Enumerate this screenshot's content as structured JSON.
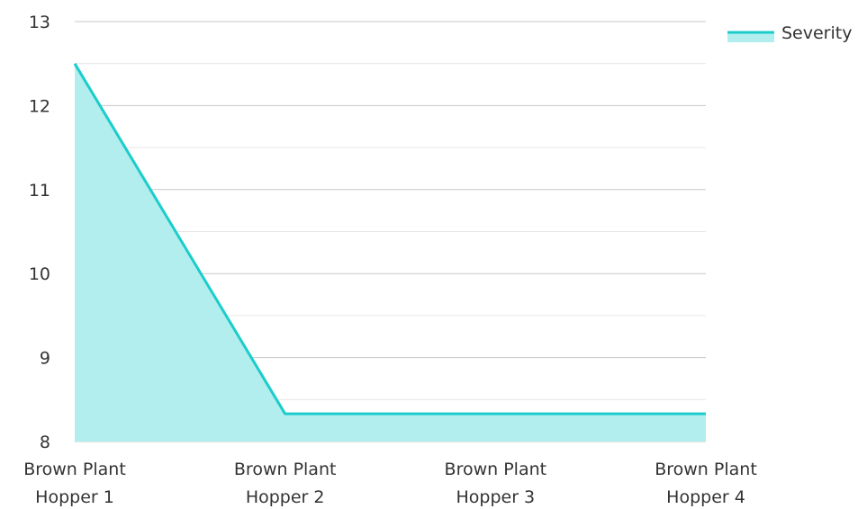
{
  "chart_data": {
    "type": "area",
    "categories": [
      [
        "Brown Plant",
        "Hopper 1"
      ],
      [
        "Brown Plant",
        "Hopper 2"
      ],
      [
        "Brown Plant",
        "Hopper 3"
      ],
      [
        "Brown Plant",
        "Hopper 4"
      ]
    ],
    "series": [
      {
        "name": "Severity",
        "values": [
          12.5,
          8.33,
          8.33,
          8.33
        ]
      }
    ],
    "ylim": [
      8,
      13
    ],
    "yticks": [
      8,
      9,
      10,
      11,
      12,
      13
    ],
    "grid": true,
    "minor_grid": true,
    "legend": "top-right",
    "colors": {
      "line": "#1ccccc",
      "fill": "#b2eeee",
      "grid_major": "#c8c8c8",
      "grid_minor": "#e6e6e6"
    }
  }
}
